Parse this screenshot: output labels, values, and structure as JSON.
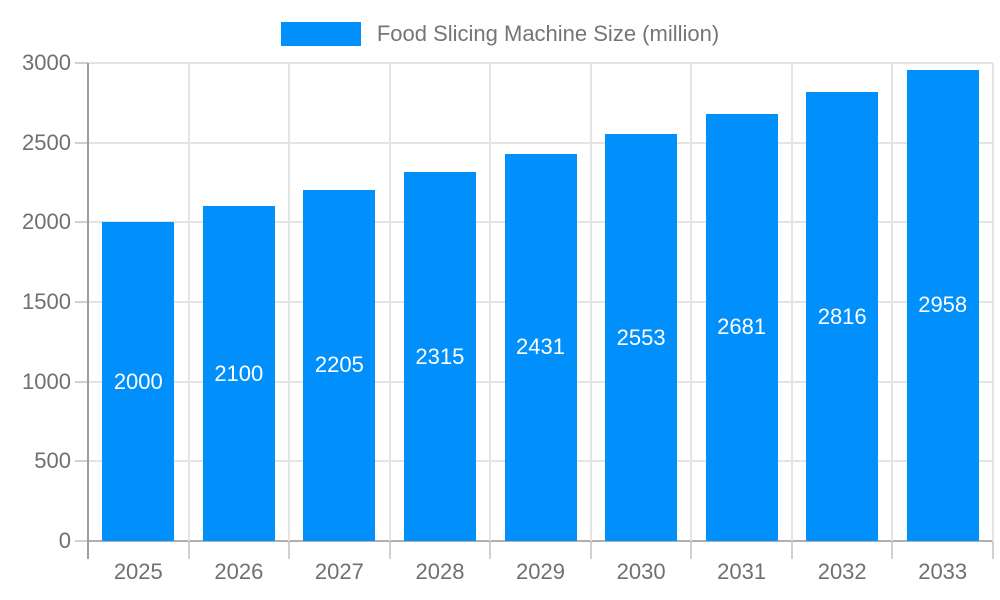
{
  "chart_data": {
    "type": "bar",
    "title": "Food Slicing Machine Size (million)",
    "legend_entries": [
      "Food Slicing Machine Size (million)"
    ],
    "legend_position": "top-center",
    "categories": [
      "2025",
      "2026",
      "2027",
      "2028",
      "2029",
      "2030",
      "2031",
      "2032",
      "2033"
    ],
    "values": [
      2000,
      2100,
      2205,
      2315,
      2431,
      2553,
      2681,
      2816,
      2958
    ],
    "bar_value_labels_visible": true,
    "xlabel": "",
    "ylabel": "",
    "ylim": [
      0,
      3000
    ],
    "y_ticks": [
      0,
      500,
      1000,
      1500,
      2000,
      2500,
      3000
    ],
    "grid": true
  },
  "colors": {
    "bar": "#008FFB",
    "bar_value_label": "#ffffff",
    "axis_text": "#707070",
    "legend_text": "#757575",
    "gridline": "#e4e4e4",
    "x_axis_line": "#b0b0b0",
    "y_axis_line": "#9e9e9e",
    "tick": "#d0d0d0",
    "background": "#ffffff"
  }
}
